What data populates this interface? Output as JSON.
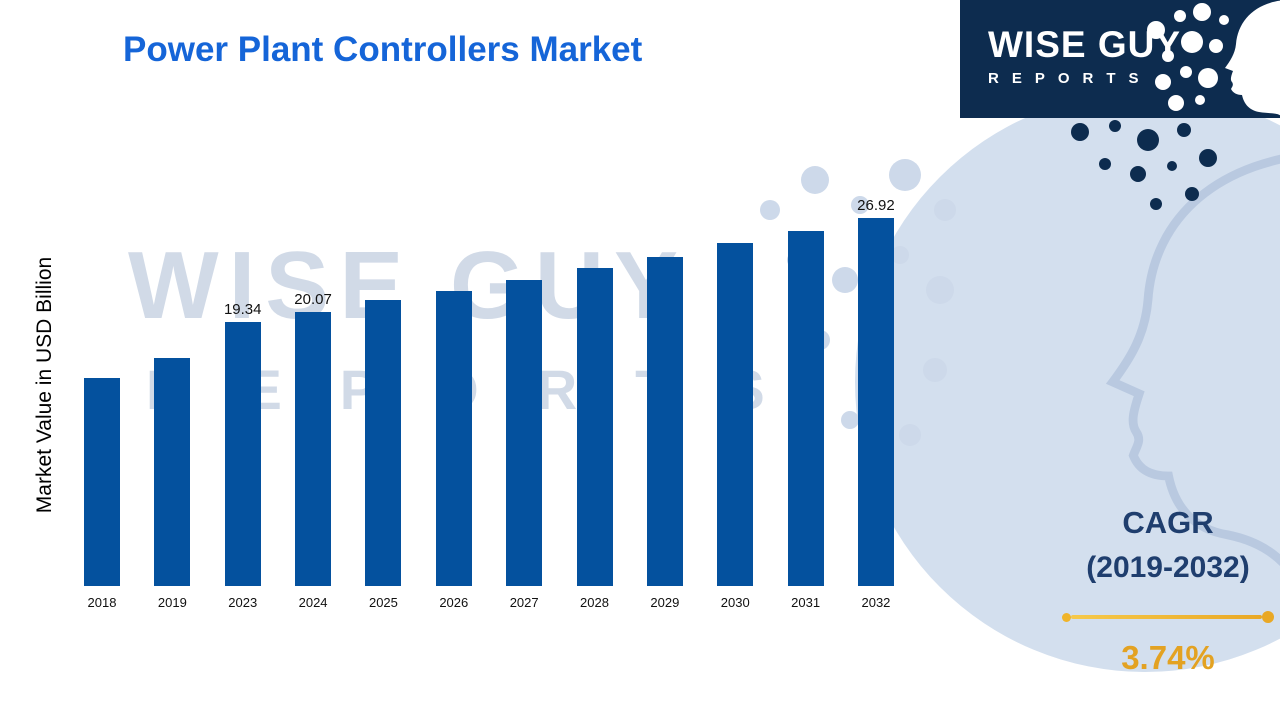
{
  "title": "Power Plant Controllers Market",
  "brand": {
    "wordmark": "WISE GUY",
    "subtext": "REPORTS"
  },
  "watermark": {
    "line1": "WISE GUY",
    "line2": "REPORTS"
  },
  "cagr": {
    "label": "CAGR",
    "range": "(2019-2032)",
    "value": "3.74%"
  },
  "chart_data": {
    "type": "bar",
    "title": "Power Plant Controllers Market",
    "xlabel": "",
    "ylabel": "Market Value in USD Billion",
    "categories": [
      "2018",
      "2019",
      "2023",
      "2024",
      "2025",
      "2026",
      "2027",
      "2028",
      "2029",
      "2030",
      "2031",
      "2032"
    ],
    "values": [
      15.2,
      16.7,
      19.34,
      20.07,
      20.9,
      21.6,
      22.4,
      23.3,
      24.1,
      25.1,
      26.0,
      26.92
    ],
    "value_labels": [
      "",
      "",
      "19.34",
      "20.07",
      "",
      "",
      "",
      "",
      "",
      "",
      "",
      "26.92"
    ],
    "ylim": [
      0,
      30
    ],
    "grid": false,
    "legend": false,
    "bar_color": "#04519e"
  },
  "colors": {
    "title_blue": "#1565d8",
    "bar_blue": "#04519e",
    "brand_navy": "#0d2c4f",
    "accent_gold": "#e9a825",
    "cagr_navy": "#1f3e6e",
    "circle_blue": "#d3dfee"
  }
}
